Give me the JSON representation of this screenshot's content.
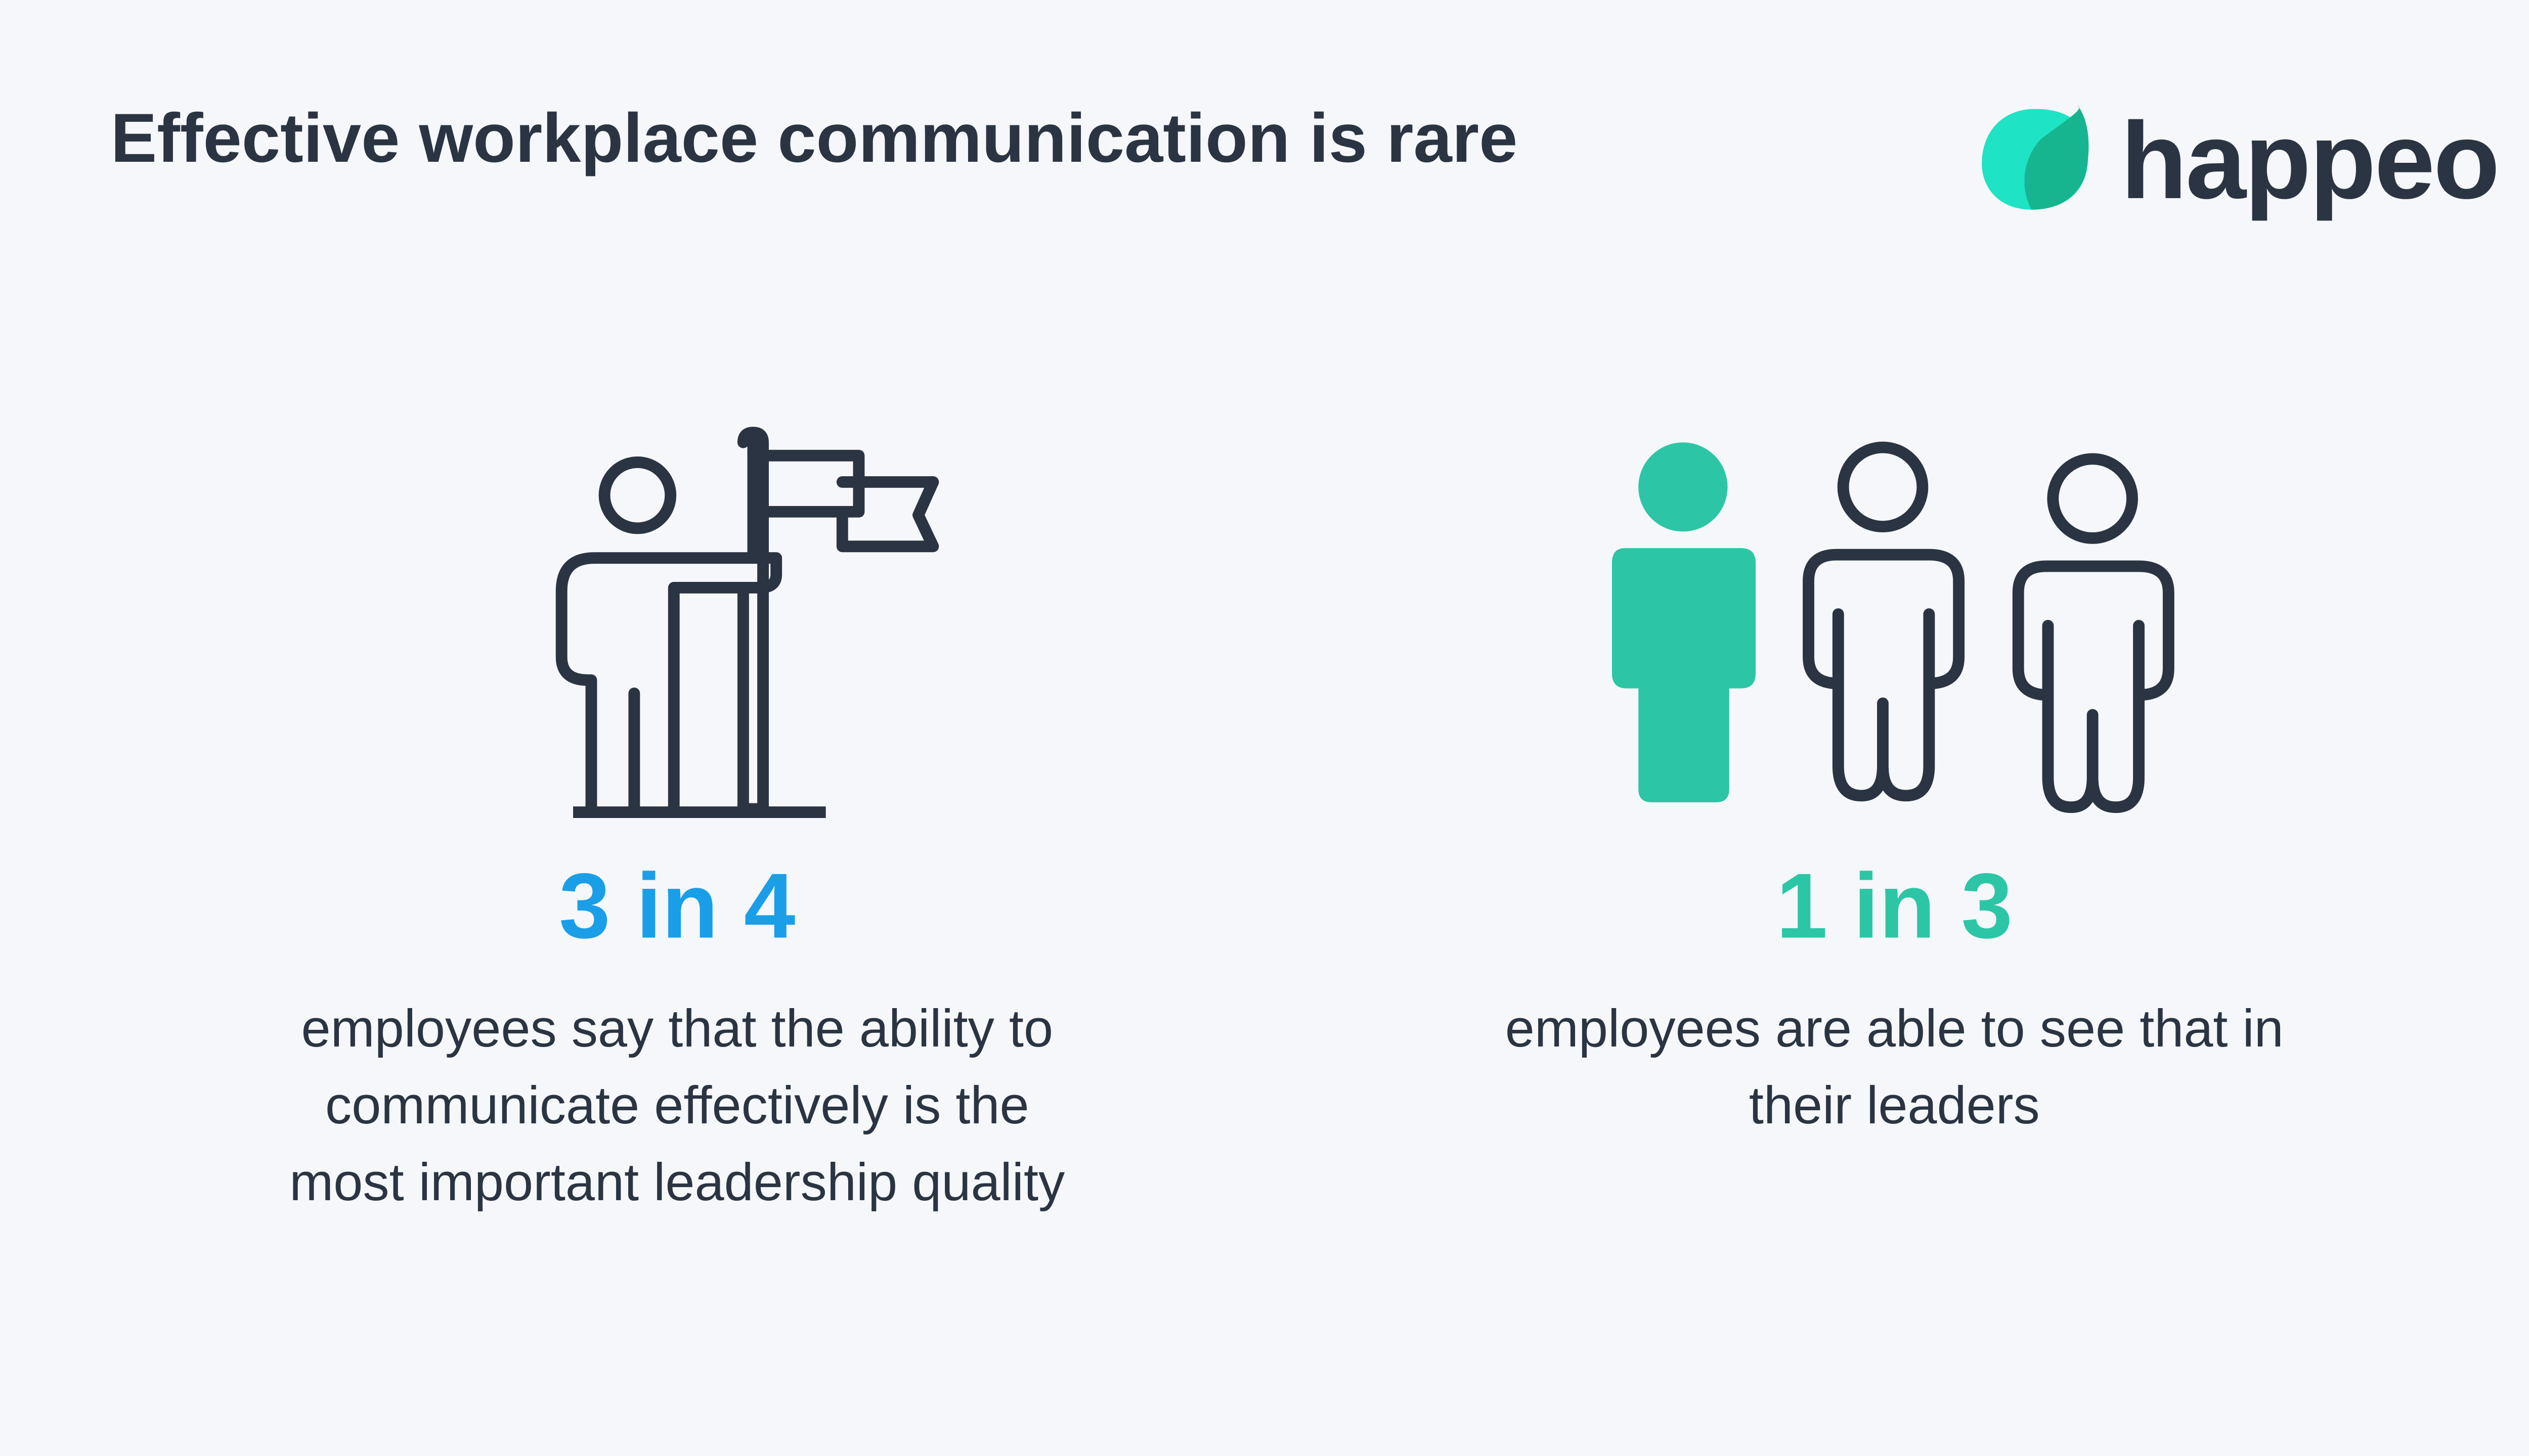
{
  "header": {
    "title": "Effective workplace communication is rare",
    "logo": "happeo"
  },
  "stats": [
    {
      "figure": "3 in 4",
      "lines": [
        "employees say that the ability to",
        "communicate effectively is the",
        "most important leadership quality"
      ]
    },
    {
      "figure": "1 in 3",
      "lines": [
        "employees are able to see that in",
        "their leaders"
      ]
    }
  ]
}
